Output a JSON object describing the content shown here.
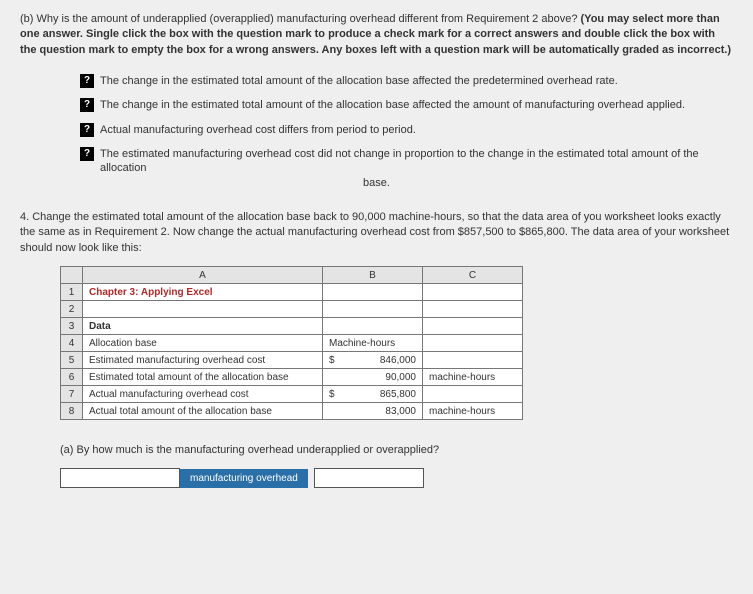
{
  "question_b": {
    "prefix": "(b) Why is the amount of underapplied (overapplied) manufacturing overhead different from Requirement 2 above? ",
    "bold": "(You may select more than one answer. Single click the box with the question mark to produce a check mark for a correct answers and double click the box with the question mark to empty the box for a wrong answers. Any boxes left with a question mark will be automatically graded as incorrect.)"
  },
  "qmark": "?",
  "options": [
    "The change in the estimated total amount of the allocation base affected the predetermined overhead rate.",
    "The change in the estimated total amount of the allocation base affected the amount of manufacturing overhead applied.",
    "Actual manufacturing overhead cost differs from period to period.",
    "The estimated manufacturing overhead cost did not change in proportion to the change in the estimated total amount of the allocation"
  ],
  "option4_extra": "base.",
  "q4_text": "4. Change the estimated total amount of the allocation base back to 90,000 machine-hours, so that the data area of you worksheet looks exactly the same as in Requirement 2. Now change the actual manufacturing overhead cost from $857,500 to $865,800. The data area of your worksheet should now look like this:",
  "table": {
    "headers": {
      "A": "A",
      "B": "B",
      "C": "C"
    },
    "rows": [
      {
        "n": "1",
        "a": "Chapter 3: Applying Excel",
        "b": "",
        "c": ""
      },
      {
        "n": "2",
        "a": "",
        "b": "",
        "c": ""
      },
      {
        "n": "3",
        "a": "Data",
        "b": "",
        "c": ""
      },
      {
        "n": "4",
        "a": "Allocation base",
        "b": "Machine-hours",
        "c": ""
      },
      {
        "n": "5",
        "a": "Estimated manufacturing overhead cost",
        "b_pre": "$",
        "b": "846,000",
        "c": ""
      },
      {
        "n": "6",
        "a": "Estimated total amount of the allocation base",
        "b": "90,000",
        "c": "machine-hours"
      },
      {
        "n": "7",
        "a": "Actual manufacturing overhead cost",
        "b_pre": "$",
        "b": "865,800",
        "c": ""
      },
      {
        "n": "8",
        "a": "Actual total amount of the allocation base",
        "b": "83,000",
        "c": "machine-hours"
      }
    ]
  },
  "part_a": "(a) By how much is the manufacturing overhead underapplied or overapplied?",
  "btn_label": "manufacturing overhead"
}
